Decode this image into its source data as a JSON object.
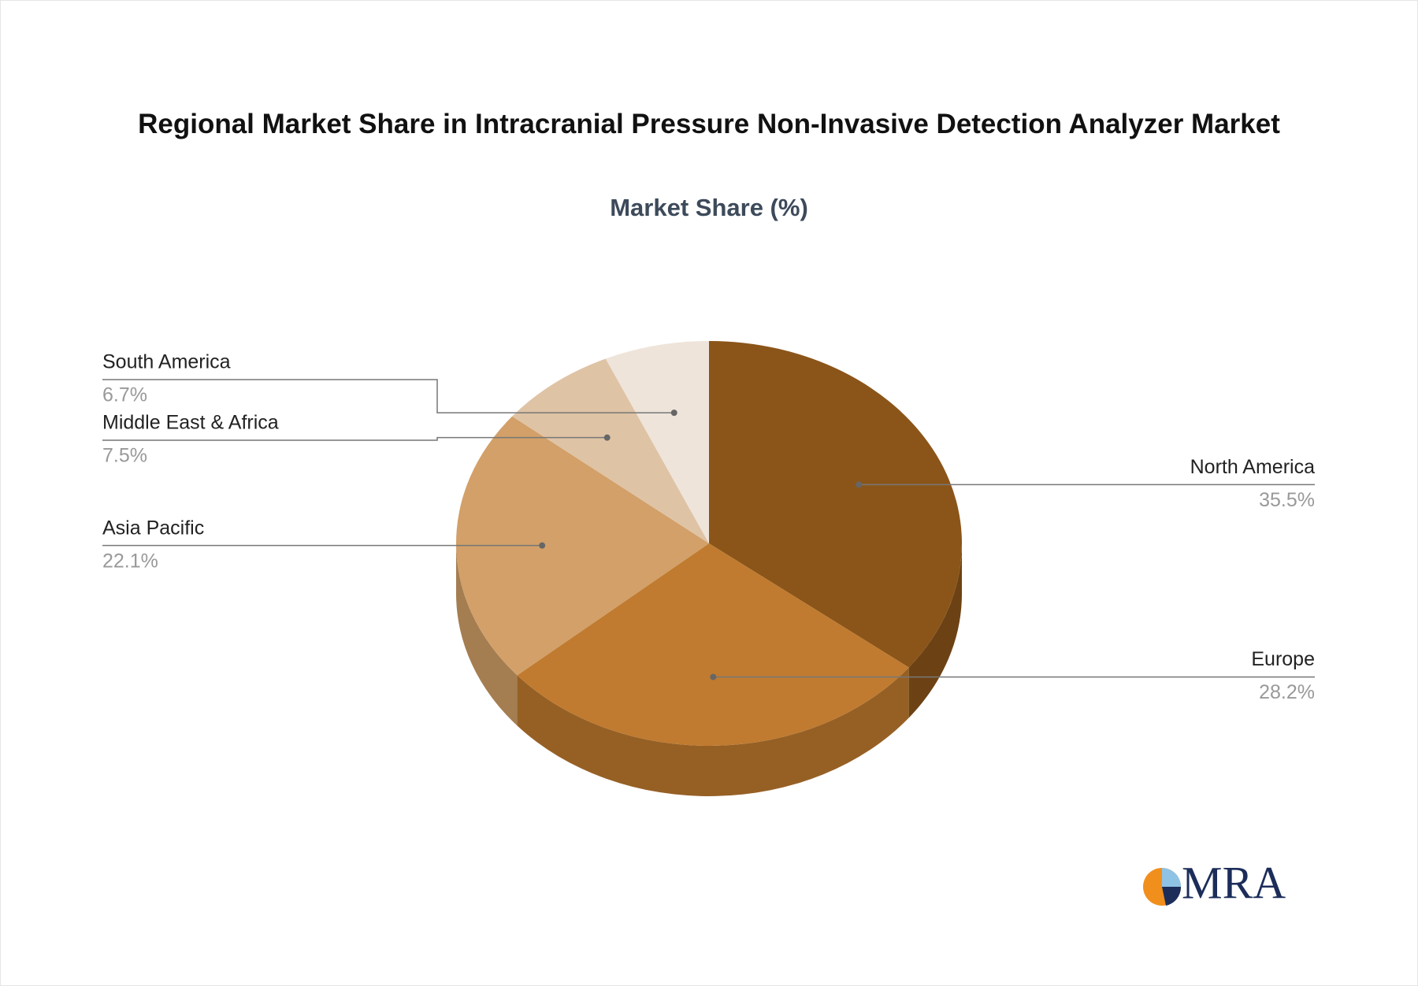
{
  "chart_data": {
    "type": "pie",
    "title": "Regional Market Share in Intracranial Pressure Non-Invasive Detection Analyzer Market",
    "subtitle": "Market Share (%)",
    "categories": [
      "North America",
      "Europe",
      "Asia Pacific",
      "Middle East & Africa",
      "South America"
    ],
    "values": [
      35.5,
      28.2,
      22.1,
      7.5,
      6.7
    ],
    "value_labels": [
      "35.5%",
      "28.2%",
      "22.1%",
      "7.5%",
      "6.7%"
    ],
    "colors": [
      "#8b5519",
      "#c07b30",
      "#d2a068",
      "#dfc3a5",
      "#eee4da"
    ]
  },
  "logo": "MRA"
}
